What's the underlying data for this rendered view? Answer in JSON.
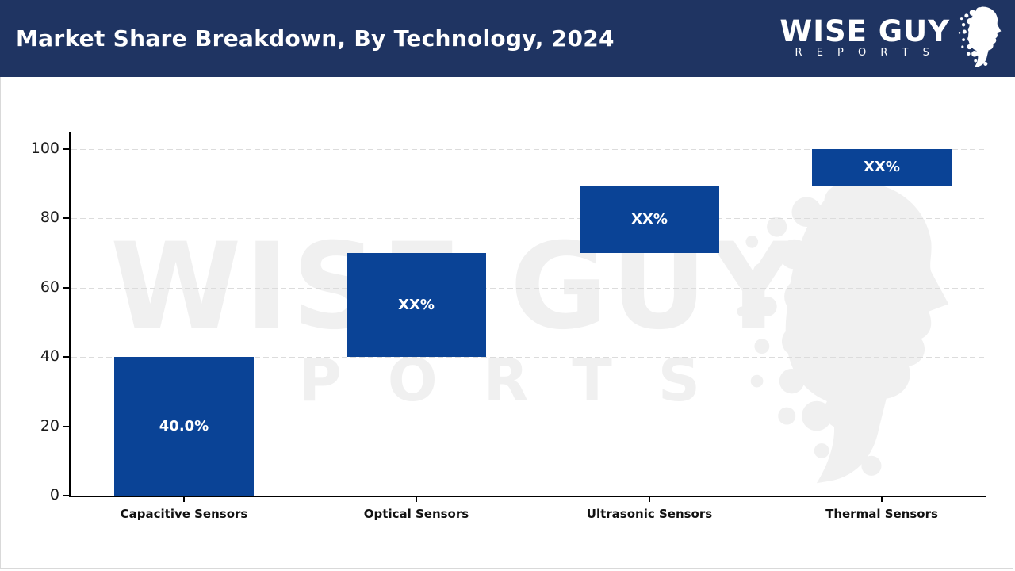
{
  "header": {
    "title": "Market Share Breakdown, By Technology, 2024",
    "logo_line1": "WISE GUY",
    "logo_line2": "R E P O R T S"
  },
  "watermark": {
    "line1": "WISE GUY",
    "line2": "REPORTS"
  },
  "colors": {
    "header_bg": "#1F3462",
    "bar": "#0A4396",
    "grid": "#DCDCDC",
    "axis": "#000000",
    "bar_label": "#FFFFFF",
    "watermark": "#F0F0F0"
  },
  "chart_data": {
    "type": "bar",
    "subtype": "waterfall",
    "title": "Market Share Breakdown, By Technology, 2024",
    "xlabel": "",
    "ylabel": "",
    "categories": [
      "Capacitive Sensors",
      "Optical Sensors",
      "Ultrasonic Sensors",
      "Thermal Sensors"
    ],
    "segments": [
      {
        "category": "Capacitive Sensors",
        "start": 0,
        "end": 40,
        "value": 40.0,
        "label": "40.0%"
      },
      {
        "category": "Optical Sensors",
        "start": 40,
        "end": 70,
        "value": 30.0,
        "label": "XX%"
      },
      {
        "category": "Ultrasonic Sensors",
        "start": 70,
        "end": 89.4,
        "value": 19.4,
        "label": "XX%"
      },
      {
        "category": "Thermal Sensors",
        "start": 89.4,
        "end": 100,
        "value": 10.6,
        "label": "XX%"
      }
    ],
    "yticks": [
      0,
      20,
      40,
      60,
      80,
      100
    ],
    "ylim": [
      0,
      104.5
    ],
    "grid": "horizontal-dashed",
    "legend": "none",
    "bar_color": "#0A4396"
  }
}
